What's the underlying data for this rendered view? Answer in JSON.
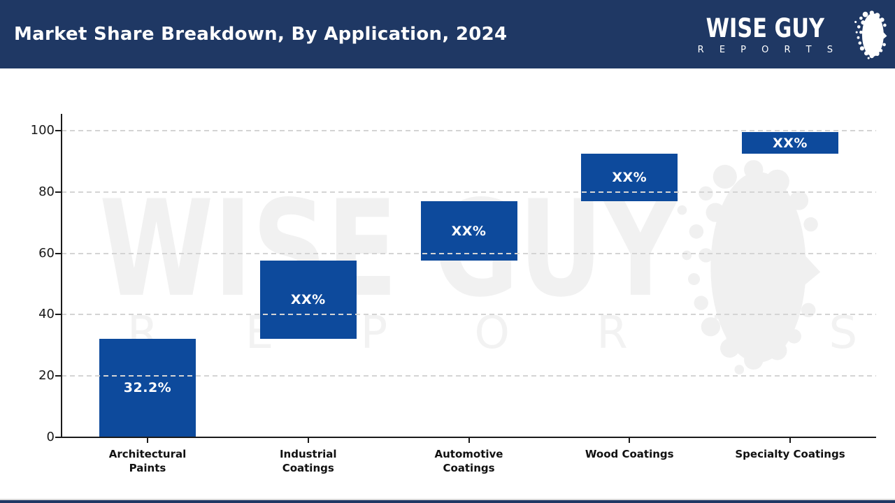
{
  "header": {
    "title": "Market Share Breakdown, By Application, 2024",
    "logo_line1": "WISE GUY",
    "logo_line2": "R E P O R T S"
  },
  "watermark": {
    "line1": "WISE GUY",
    "line2": "R E P O R T S"
  },
  "chart_data": {
    "type": "bar",
    "variant": "waterfall",
    "title": "Market Share Breakdown, By Application, 2024",
    "categories": [
      [
        "Architectural",
        "Paints"
      ],
      [
        "Industrial",
        "Coatings"
      ],
      [
        "Automotive",
        "Coatings"
      ],
      [
        "Wood Coatings"
      ],
      [
        "Specialty Coatings"
      ]
    ],
    "segments": [
      {
        "category": "Architectural Paints",
        "start": 0,
        "end": 32.2,
        "label": "32.2%"
      },
      {
        "category": "Industrial Coatings",
        "start": 32.2,
        "end": 57.6,
        "label": "XX%"
      },
      {
        "category": "Automotive Coatings",
        "start": 57.6,
        "end": 77.0,
        "label": "XX%"
      },
      {
        "category": "Wood Coatings",
        "start": 77.0,
        "end": 92.4,
        "label": "XX%"
      },
      {
        "category": "Specialty Coatings",
        "start": 92.4,
        "end": 99.6,
        "label": "XX%"
      }
    ],
    "yticks": [
      0,
      20,
      40,
      60,
      80,
      100
    ],
    "ylim": [
      0,
      105
    ],
    "xlabel": "",
    "ylabel": "",
    "legend": null,
    "grid": "horizontal-dashed",
    "colors": {
      "bar": "#0d4a9c",
      "bar_label": "#ffffff",
      "grid": "#d4d4d4",
      "axis": "#1a1a1a",
      "header_bg": "#1f3864",
      "watermark": "#f0f0f0"
    }
  }
}
